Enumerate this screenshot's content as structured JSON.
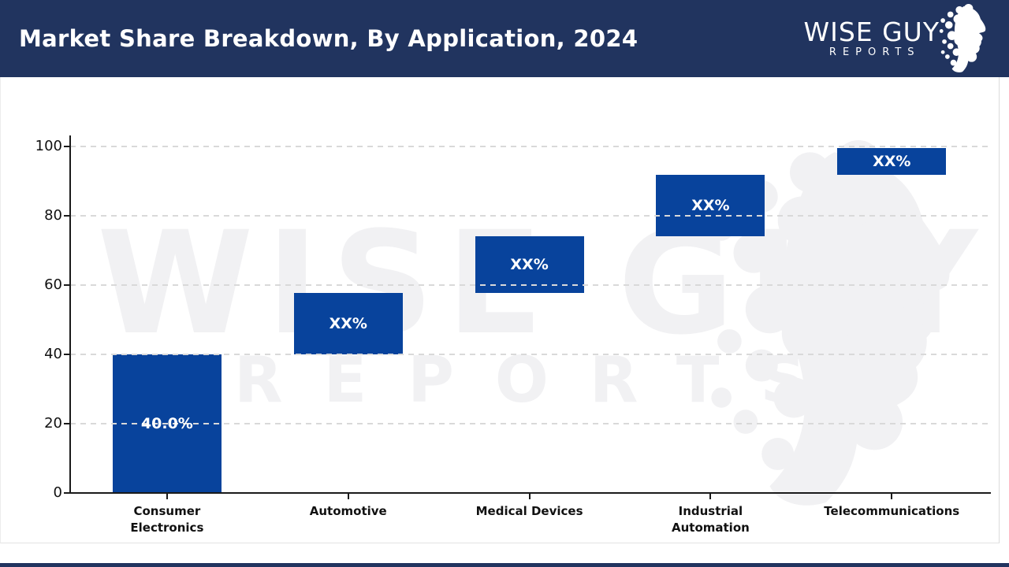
{
  "header": {
    "title": "Market Share Breakdown, By Application, 2024",
    "logo": {
      "wordmark": "WISE GUY",
      "subtext": "REPORTS"
    }
  },
  "watermark": {
    "wordmark": "WISE GUY",
    "subtext": "REPORTS"
  },
  "chart_data": {
    "type": "bar",
    "subtype": "waterfall",
    "title": "Market Share Breakdown, By Application, 2024",
    "categories": [
      "Consumer Electronics",
      "Automotive",
      "Medical Devices",
      "Industrial Automation",
      "Telecommunications"
    ],
    "categories_display": [
      [
        "Consumer",
        "Electronics"
      ],
      [
        "Automotive"
      ],
      [
        "Medical Devices"
      ],
      [
        "Industrial",
        "Automation"
      ],
      [
        "Telecommunications"
      ]
    ],
    "series": [
      {
        "name": "Market share (%)",
        "segments": [
          {
            "category": "Consumer Electronics",
            "start": 0,
            "end": 40.0,
            "value": 40.0,
            "label": "40.0%"
          },
          {
            "category": "Automotive",
            "start": 40.0,
            "end": 57.7,
            "value": 17.7,
            "label": "XX%"
          },
          {
            "category": "Medical Devices",
            "start": 57.7,
            "end": 74.0,
            "value": 16.3,
            "label": "XX%"
          },
          {
            "category": "Industrial Automation",
            "start": 74.0,
            "end": 91.8,
            "value": 17.8,
            "label": "XX%"
          },
          {
            "category": "Telecommunications",
            "start": 91.8,
            "end": 99.5,
            "value": 7.7,
            "label": "XX%"
          }
        ]
      }
    ],
    "xlabel": "",
    "ylabel": "",
    "ylim": [
      0,
      103
    ],
    "yticks": [
      0,
      20,
      40,
      60,
      80,
      100
    ],
    "grid": "horizontal-dashed",
    "legend_position": "none",
    "bar_color": "#08439c",
    "bar_label_color": "#ffffff"
  },
  "colors": {
    "header_bg": "#21345f",
    "footer_bg": "#21345f",
    "bar": "#08439c",
    "gridline": "#d9d9d9",
    "axis": "#1a1a1a",
    "watermark": "#f1f1f3",
    "title_text": "#ffffff"
  }
}
